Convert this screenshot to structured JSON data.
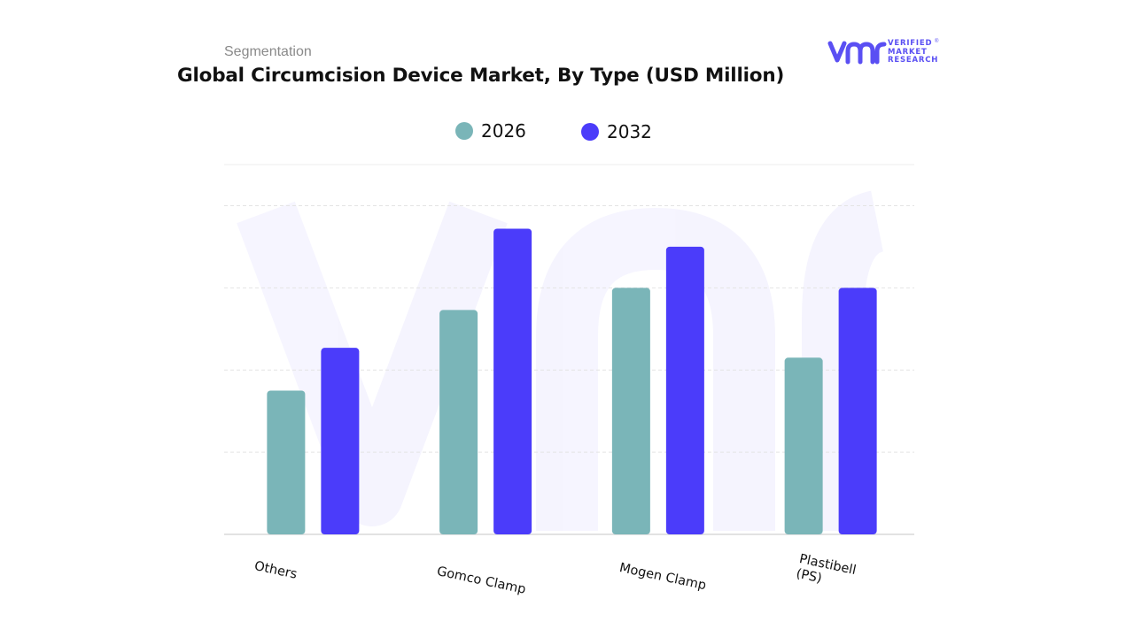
{
  "header": {
    "subtitle": "Segmentation",
    "title": "Global Circumcision Device Market, By Type (USD Million)"
  },
  "logo": {
    "mark": "vmr",
    "line1": "VERIFIED",
    "line2": "MARKET",
    "line3": "RESEARCH",
    "reg": "®",
    "color": "#5a4ff3"
  },
  "chart_data": {
    "type": "bar",
    "title": "Global Circumcision Device Market, By Type (USD Million)",
    "categories": [
      "Others",
      "Gomco Clamp",
      "Mogen Clamp",
      "Plastibell\n(PS)"
    ],
    "series": [
      {
        "name": "2026",
        "color": "#7ab5b8",
        "values": [
          1.75,
          2.73,
          3.0,
          2.15
        ]
      },
      {
        "name": "2032",
        "color": "#4b3cfa",
        "values": [
          2.27,
          3.72,
          3.5,
          3.0
        ]
      }
    ],
    "ylim": [
      0,
      4.5
    ],
    "y_tick_labels_visible": false,
    "grid": true,
    "legend_position": "top-center",
    "watermark": "vmr"
  }
}
